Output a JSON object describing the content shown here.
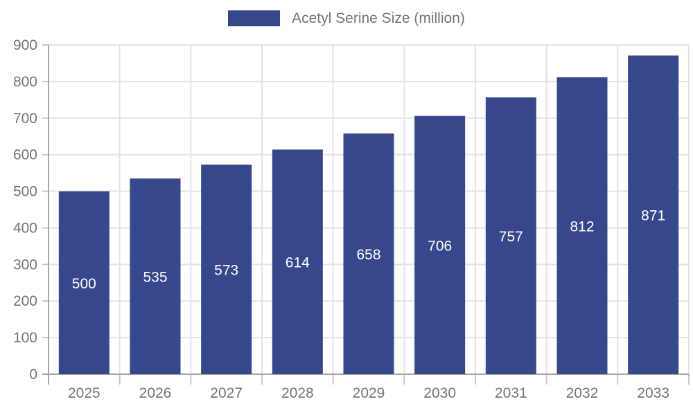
{
  "chart_data": {
    "type": "bar",
    "legend_label": "Acetyl Serine Size (million)",
    "categories": [
      "2025",
      "2026",
      "2027",
      "2028",
      "2029",
      "2030",
      "2031",
      "2032",
      "2033"
    ],
    "values": [
      500,
      535,
      573,
      614,
      658,
      706,
      757,
      812,
      871
    ],
    "title": "",
    "xlabel": "",
    "ylabel": "",
    "ylim": [
      0,
      900
    ],
    "ytick_step": 100,
    "grid": "horizontal-and-vertical",
    "legend_position": "top-center",
    "value_labels": "inside-bar-centered",
    "colors": {
      "bar": "#36478B",
      "value_label": "#FFFFFF",
      "axis_text": "#757575",
      "legend_text": "#757575",
      "axis_line": "#A6A6A6",
      "gridline": "#E3E3E3",
      "tick": "#C8C8C8"
    }
  }
}
